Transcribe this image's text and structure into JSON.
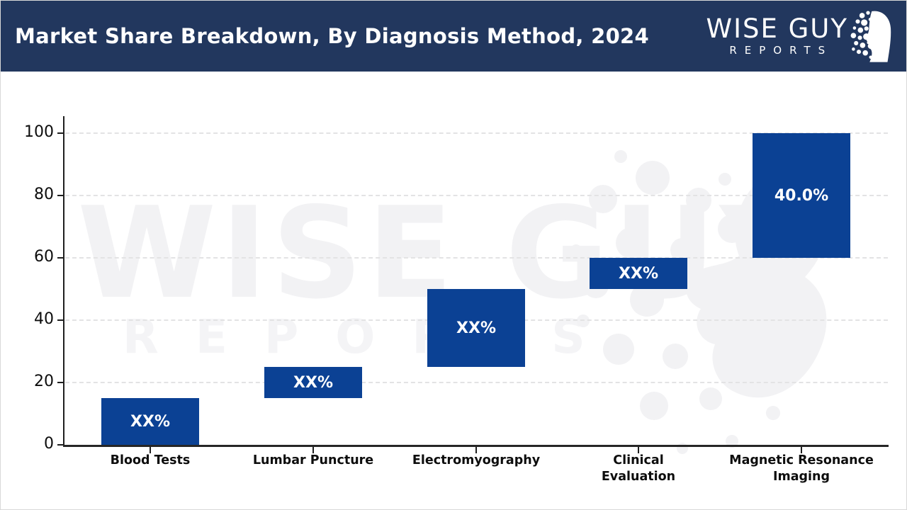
{
  "header": {
    "title": "Market Share Breakdown, By Diagnosis Method, 2024",
    "logo": {
      "line1": "WISE GUY",
      "line2": "REPORTS"
    }
  },
  "watermark": {
    "line1": "WISE GUY",
    "line2": "REPORTS"
  },
  "chart_data": {
    "type": "bar",
    "subtype": "waterfall",
    "title": "Market Share Breakdown, By Diagnosis Method, 2024",
    "categories": [
      "Blood Tests",
      "Lumbar Puncture",
      "Electromyography",
      "Clinical Evaluation",
      "Magnetic Resonance Imaging"
    ],
    "category_lines": [
      [
        "Blood Tests"
      ],
      [
        "Lumbar Puncture"
      ],
      [
        "Electromyography"
      ],
      [
        "Clinical",
        "Evaluation"
      ],
      [
        "Magnetic Resonance",
        "Imaging"
      ]
    ],
    "segments": [
      {
        "category": "Blood Tests",
        "start": 0,
        "end": 15,
        "label": "XX%"
      },
      {
        "category": "Lumbar Puncture",
        "start": 15,
        "end": 25,
        "label": "XX%"
      },
      {
        "category": "Electromyography",
        "start": 25,
        "end": 50,
        "label": "XX%"
      },
      {
        "category": "Clinical Evaluation",
        "start": 50,
        "end": 60,
        "label": "XX%"
      },
      {
        "category": "Magnetic Resonance Imaging",
        "start": 60,
        "end": 100,
        "label": "40.0%"
      }
    ],
    "ylim": [
      0,
      100
    ],
    "yticks": [
      0,
      20,
      40,
      60,
      80,
      100
    ],
    "xlabel": "",
    "ylabel": "",
    "grid": "horizontal-dashed",
    "legend": "none",
    "bar_color": "#0b4194",
    "bar_label_color": "#ffffff",
    "header_color": "#22375e"
  }
}
